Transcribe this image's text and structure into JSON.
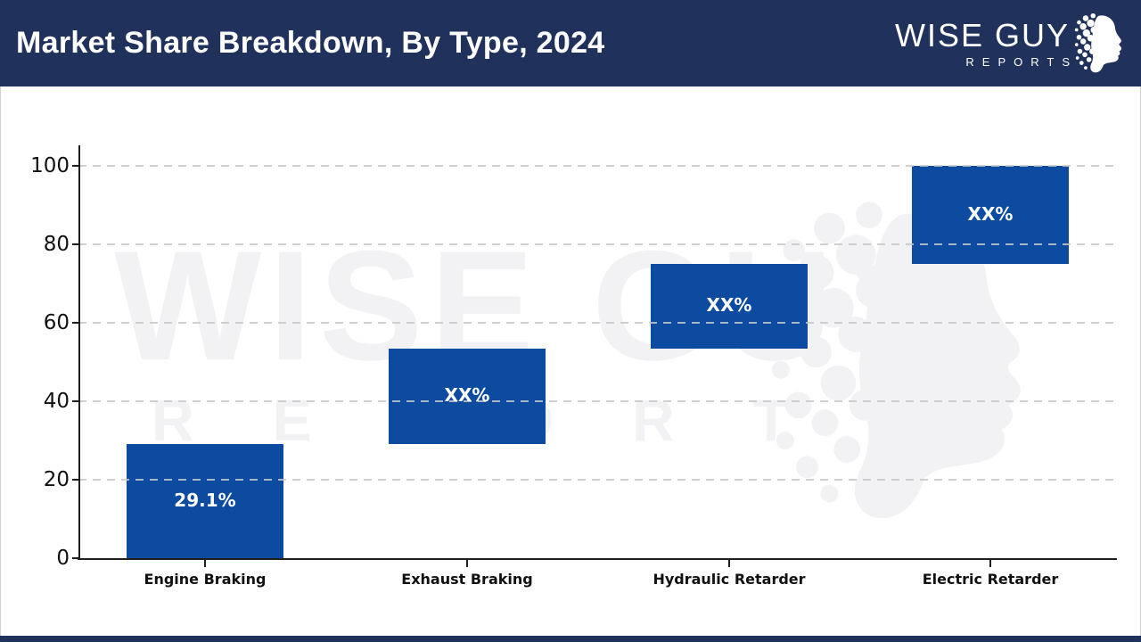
{
  "header": {
    "title": "Market Share Breakdown, By Type, 2024",
    "logo": {
      "line1": "WISE GUY",
      "line2": "REPORTS"
    }
  },
  "watermark": {
    "line1": "WISE GUY",
    "line2": "REPORTS"
  },
  "chart_data": {
    "type": "bar",
    "subtype": "waterfall-floating-bars",
    "title": "Market Share Breakdown, By Type, 2024",
    "categories": [
      "Engine Braking",
      "Exhaust Braking",
      "Hydraulic Retarder",
      "Electric Retarder"
    ],
    "series": [
      {
        "name": "Market Share %",
        "segments": [
          {
            "category": "Engine Braking",
            "start": 0,
            "end": 29.1,
            "label": "29.1%"
          },
          {
            "category": "Exhaust Braking",
            "start": 29.1,
            "end": 53.5,
            "label": "XX%"
          },
          {
            "category": "Hydraulic Retarder",
            "start": 53.5,
            "end": 75.0,
            "label": "XX%"
          },
          {
            "category": "Electric Retarder",
            "start": 75.0,
            "end": 100.0,
            "label": "XX%"
          }
        ]
      }
    ],
    "xlabel": "",
    "ylabel": "",
    "yticks": [
      0,
      20,
      40,
      60,
      80,
      100
    ],
    "ylim": [
      0,
      105
    ],
    "grid": "dashed-horizontal",
    "legend": "none"
  },
  "colors": {
    "bar": "#0c4ba0",
    "header_bg": "#20315c",
    "footer_bg": "#20315c",
    "title_text": "#ffffff",
    "axis": "#1f1f1f",
    "grid": "#c8c8c8",
    "bar_label_text": "#ffffff",
    "tick_text": "#111111",
    "watermark": "#f2f2f5"
  }
}
